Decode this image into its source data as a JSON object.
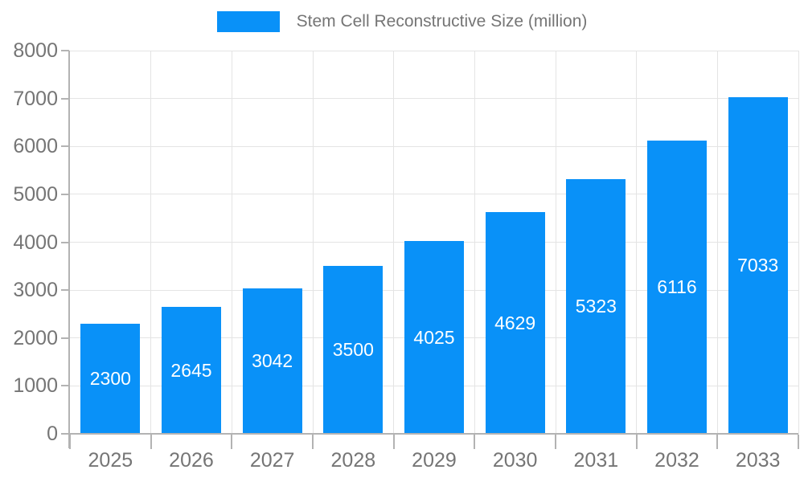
{
  "legend": {
    "label": "Stem Cell Reconstructive Size (million)",
    "swatch_color": "#0991f8"
  },
  "chart_data": {
    "type": "bar",
    "title": "Stem Cell Reconstructive Size (million)",
    "categories": [
      "2025",
      "2026",
      "2027",
      "2028",
      "2029",
      "2030",
      "2031",
      "2032",
      "2033"
    ],
    "values": [
      2300,
      2645,
      3042,
      3500,
      4025,
      4629,
      5323,
      6116,
      7033
    ],
    "value_labels": [
      "2300",
      "2645",
      "3042",
      "3500",
      "4025",
      "4629",
      "5323",
      "6116",
      "7033"
    ],
    "xlabel": "",
    "ylabel": "",
    "ylim": [
      0,
      8000
    ],
    "ytick_interval": 1000,
    "ytick_labels": [
      "0",
      "1000",
      "2000",
      "3000",
      "4000",
      "5000",
      "6000",
      "7000",
      "8000"
    ],
    "grid": true,
    "legend_position": "top-center",
    "bar_color": "#0991f8",
    "value_label_color": "#ffffff",
    "axis_text_color": "#757575",
    "gridline_color": "#e4e4e4",
    "axis_line_color": "#b3b3b3",
    "background_color": "#ffffff"
  }
}
